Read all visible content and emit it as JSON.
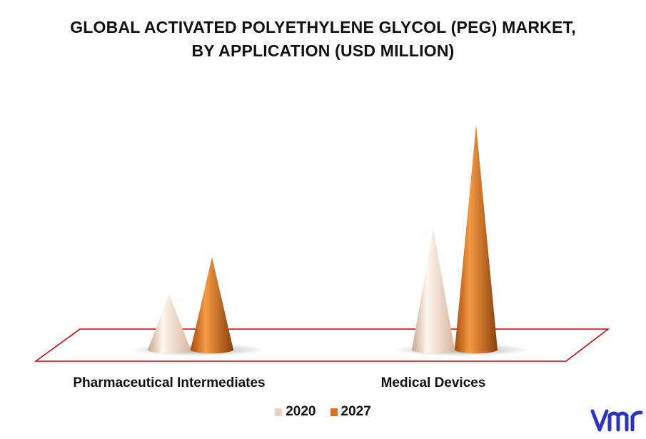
{
  "chart_data": {
    "type": "bar",
    "title_lines": [
      "GLOBAL ACTIVATED POLYETHYLENE GLYCOL (PEG) MARKET,",
      "BY APPLICATION (USD MILLION)"
    ],
    "categories": [
      "Pharmaceutical Intermediates",
      "Medical Devices"
    ],
    "series": [
      {
        "name": "2020",
        "values": [
          78,
          170
        ]
      },
      {
        "name": "2027",
        "values": [
          130,
          315
        ]
      }
    ],
    "ylim": [
      0,
      320
    ],
    "grid": false,
    "legend_position": "bottom-center",
    "mark_shape": "cone"
  },
  "colors": {
    "series_2020": "#f0d3bf",
    "series_2020_dark": "#c9a68d",
    "series_2027": "#d9721f",
    "series_2027_dark": "#8a3f0a",
    "floor_border": "#cc0000",
    "logo": "#2d35b8"
  },
  "logo": {
    "text": "vmr"
  }
}
